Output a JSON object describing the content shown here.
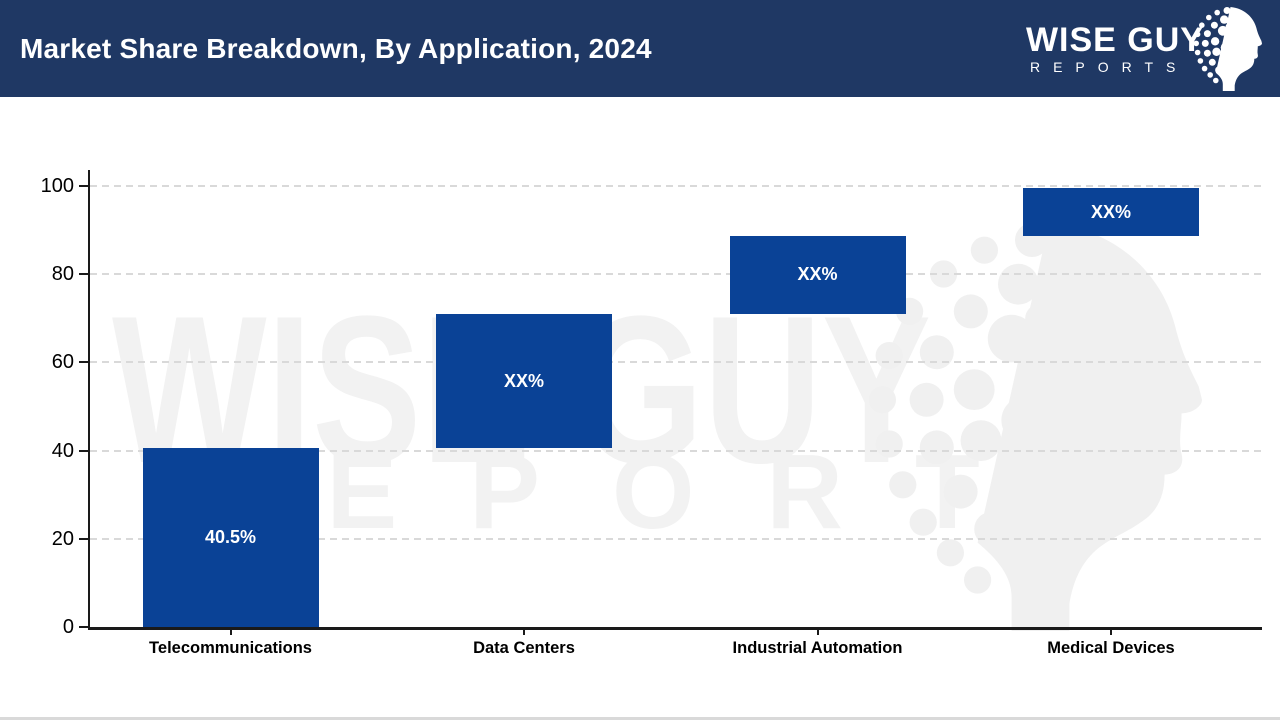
{
  "header": {
    "title": "Market Share Breakdown, By Application, 2024",
    "logo": {
      "line1": "WISE GUY",
      "line2": "REPORTS"
    }
  },
  "watermark": {
    "line1": "WISE GUY",
    "line2": "REPORTS"
  },
  "colors": {
    "header_bg": "#1f3864",
    "bar": "#0a4296",
    "bar_label": "#ffffff",
    "grid": "#d9d9d9",
    "axis": "#1a1a1a",
    "watermark": "#f2f2f2"
  },
  "chart_data": {
    "type": "bar",
    "subtype": "floating-waterfall",
    "title": "Market Share Breakdown, By Application, 2024",
    "categories": [
      "Telecommunications",
      "Data Centers",
      "Industrial Automation",
      "Medical Devices"
    ],
    "bars": [
      {
        "category": "Telecommunications",
        "from": 0,
        "to": 40.5,
        "label": "40.5%"
      },
      {
        "category": "Data Centers",
        "from": 40.5,
        "to": 71,
        "label": "XX%"
      },
      {
        "category": "Industrial Automation",
        "from": 71,
        "to": 88.7,
        "label": "XX%"
      },
      {
        "category": "Medical Devices",
        "from": 88.7,
        "to": 99.5,
        "label": "XX%"
      }
    ],
    "xlabel": "",
    "ylabel": "",
    "yticks": [
      0,
      20,
      40,
      60,
      80,
      100
    ],
    "ylim": [
      0,
      103.5
    ],
    "grid": "horizontal-dashed",
    "legend": "none"
  }
}
